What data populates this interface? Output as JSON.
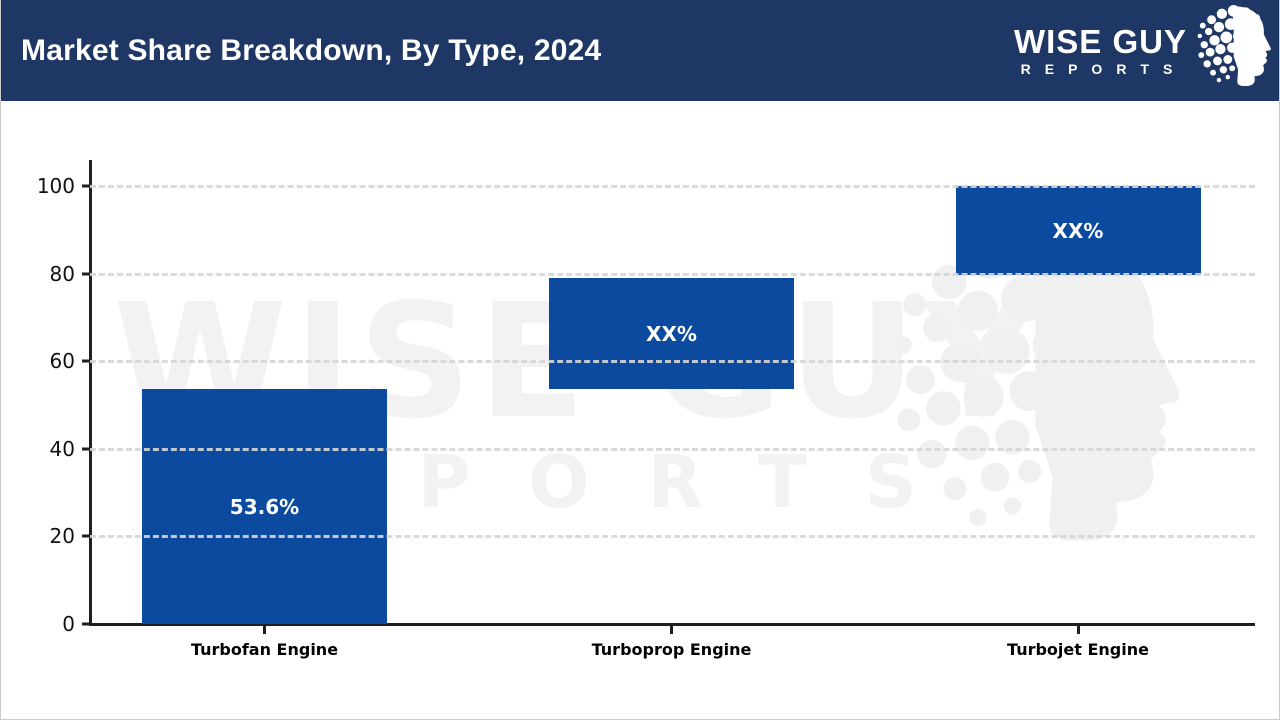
{
  "header": {
    "title": "Market Share Breakdown, By Type, 2024",
    "logo": {
      "line1": "WISE GUY",
      "line2": "REPORTS"
    }
  },
  "watermark": {
    "line1": "WISE GUY",
    "line2": "REPORTS"
  },
  "chart_data": {
    "type": "bar",
    "subtype": "stacked-progression",
    "title": "Market Share Breakdown, By Type, 2024",
    "xlabel": "",
    "ylabel": "",
    "ylim": [
      0,
      100
    ],
    "yticks": [
      0,
      20,
      40,
      60,
      80,
      100
    ],
    "grid": "dashed horizontal gridlines, drawn over bars",
    "legend": "none",
    "categories": [
      "Turbofan Engine",
      "Turboprop Engine",
      "Turbojet Engine"
    ],
    "segments": [
      {
        "category": "Turbofan Engine",
        "from": 0,
        "to": 53.6,
        "label": "53.6%"
      },
      {
        "category": "Turboprop Engine",
        "from": 53.6,
        "to": 79.0,
        "label": "XX%"
      },
      {
        "category": "Turbojet Engine",
        "from": 79.6,
        "to": 100.0,
        "label": "XX%"
      }
    ],
    "bar_color": "#0b4a9e",
    "bar_label_color": "#ffffff"
  },
  "colors": {
    "header_bg": "#1f3765",
    "header_text": "#ffffff",
    "bar": "#0b4a9e",
    "axis": "#1f1f1f",
    "gridline": "#d6d6d6",
    "watermark": "#f2f2f2"
  }
}
